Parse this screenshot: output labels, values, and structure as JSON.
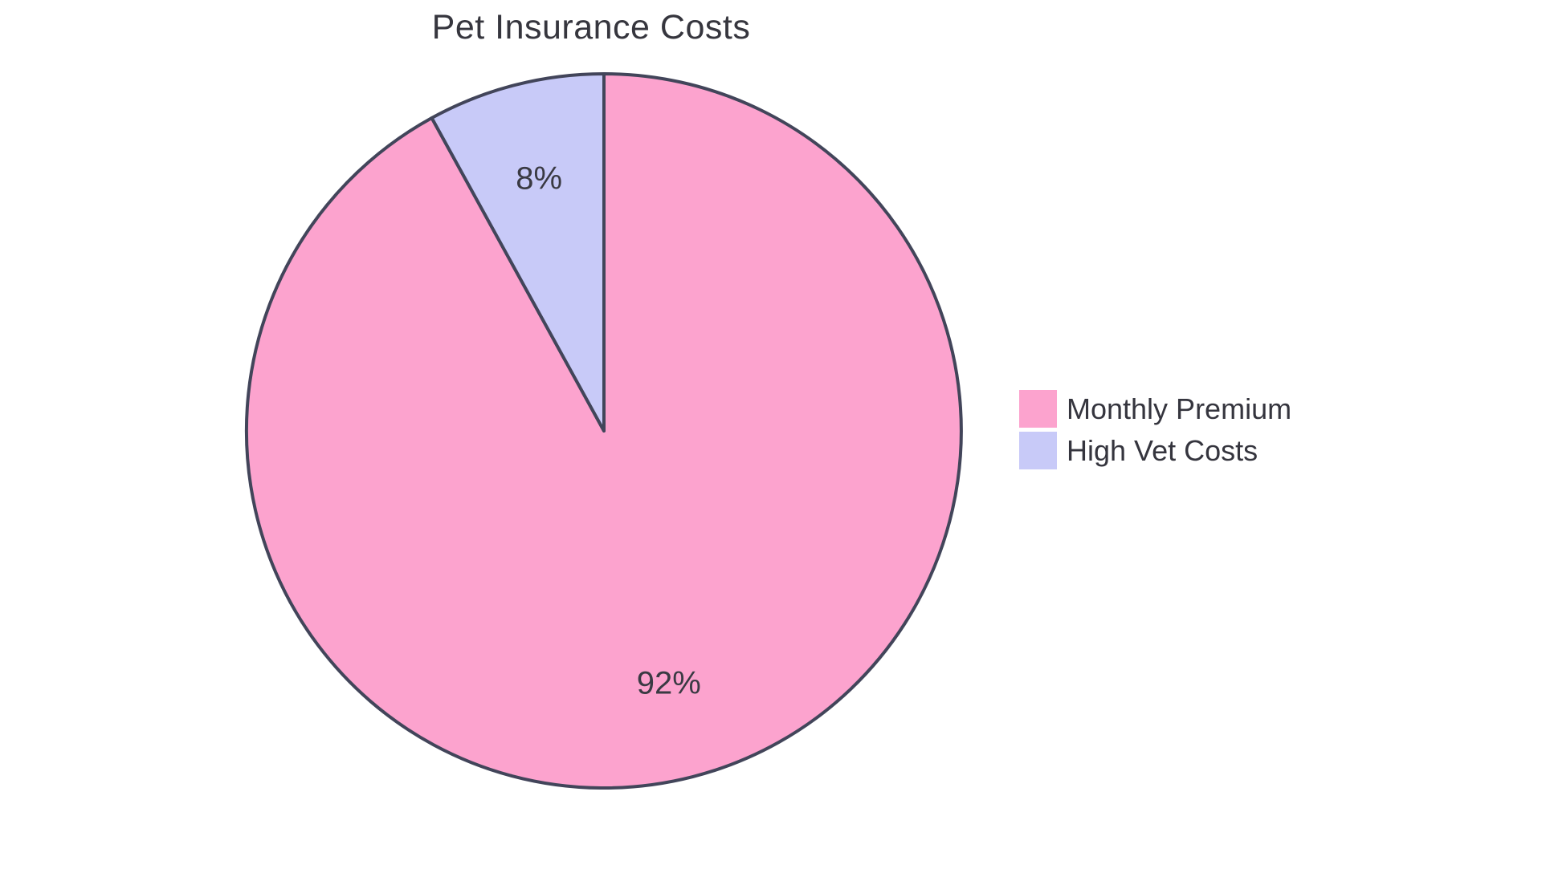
{
  "chart_data": {
    "type": "pie",
    "title": "Pet Insurance Costs",
    "series": [
      {
        "name": "Monthly Premium",
        "value": 92,
        "display_label": "92%",
        "color": "#FCA3CE"
      },
      {
        "name": "High Vet Costs",
        "value": 8,
        "display_label": "8%",
        "color": "#C8CAF8"
      }
    ],
    "unit": "%",
    "start_angle": "12-oclock",
    "direction": "clockwise",
    "legend_position": "right",
    "stroke_color": "#42455A",
    "stroke_width": 4,
    "label_color": "#3A3A43",
    "title_color": "#36363E",
    "legend_text_color": "#35353E",
    "background_color": "#FFFFFF"
  }
}
